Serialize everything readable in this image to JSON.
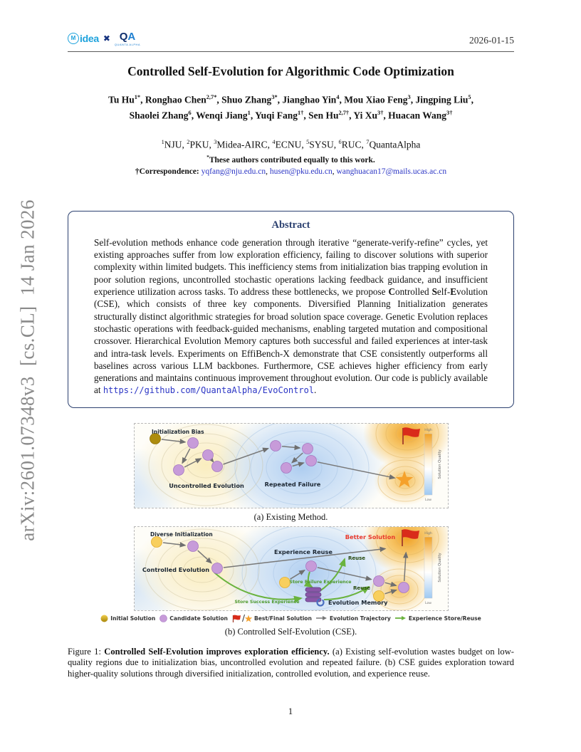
{
  "page": {
    "date": "2026-01-15",
    "page_number": "1",
    "arxiv_sidebar": "arXiv:2601.07348v3  [cs.CL]  14 Jan 2026"
  },
  "header": {
    "logo": {
      "midea_m": "M",
      "midea_rest": "idea",
      "cross_icon": "✖",
      "qa_q": "Q",
      "qa_a": "A",
      "qa_sub": "QUANTA ALPHA"
    }
  },
  "title": "Controlled Self-Evolution for Algorithmic Code Optimization",
  "authors": {
    "line1": [
      {
        "name": "Tu Hu",
        "sup": "1*"
      },
      {
        "name": "Ronghao Chen",
        "sup": "2,7*"
      },
      {
        "name": "Shuo Zhang",
        "sup": "3*"
      },
      {
        "name": "Jianghao Yin",
        "sup": "4"
      },
      {
        "name": "Mou Xiao Feng",
        "sup": "3"
      },
      {
        "name": "Jingping Liu",
        "sup": "5"
      }
    ],
    "line2": [
      {
        "name": "Shaolei Zhang",
        "sup": "6"
      },
      {
        "name": "Wenqi Jiang",
        "sup": "1"
      },
      {
        "name": "Yuqi Fang",
        "sup": "1†"
      },
      {
        "name": "Sen Hu",
        "sup": "2,7†"
      },
      {
        "name": "Yi Xu",
        "sup": "3†"
      },
      {
        "name": "Huacan Wang",
        "sup": "3†"
      }
    ]
  },
  "affiliations": [
    {
      "sup": "1",
      "name": "NJU"
    },
    {
      "sup": "2",
      "name": "PKU"
    },
    {
      "sup": "3",
      "name": "Midea-AIRC"
    },
    {
      "sup": "4",
      "name": "ECNU"
    },
    {
      "sup": "5",
      "name": "SYSU"
    },
    {
      "sup": "6",
      "name": "RUC"
    },
    {
      "sup": "7",
      "name": "QuantaAlpha"
    }
  ],
  "notes": {
    "equal_sup": "*",
    "equal_text": "These authors contributed equally to this work.",
    "corr_label": "†Correspondence:",
    "emails": [
      "yqfang@nju.edu.cn",
      "husen@pku.edu.cn",
      "wanghuacan17@mails.ucas.ac.cn"
    ]
  },
  "abstract": {
    "heading": "Abstract",
    "segments": [
      {
        "text": "Self-evolution methods enhance code generation through iterative “generate-verify-refine” cycles, yet existing approaches suffer from low exploration efficiency, failing to discover solutions with superior complexity within limited budgets. This inefficiency stems from initialization bias trapping evolution in poor solution regions, uncontrolled stochastic operations lacking feedback guidance, and insufficient experience utilization across tasks. To address these bottlenecks, we propose "
      },
      {
        "text": "C",
        "bold": true
      },
      {
        "text": "ontrolled "
      },
      {
        "text": "S",
        "bold": true
      },
      {
        "text": "elf-"
      },
      {
        "text": "E",
        "bold": true
      },
      {
        "text": "volution (CSE), which consists of three key components. Diversified Planning Initialization generates structurally distinct algorithmic strategies for broad solution space coverage. Genetic Evolution replaces stochastic operations with feedback-guided mechanisms, enabling targeted mutation and compositional crossover. Hierarchical Evolution Memory captures both successful and failed experiences at inter-task and intra-task levels. Experiments on EffiBench-X demonstrate that CSE consistently outperforms all baselines across various LLM backbones. Furthermore, CSE achieves higher efficiency from early generations and maintains continuous improvement throughout evolution. Our code is publicly available at "
      },
      {
        "text": "https://github.com/QuantaAlpha/EvoControl",
        "mono": true
      },
      {
        "text": "."
      }
    ]
  },
  "figure": {
    "panel_a": {
      "label_init_bias": "Initialization Bias",
      "label_uncontrolled": "Uncontrolled Evolution",
      "label_repeated": "Repeated Failure",
      "caption": "(a) Existing Method."
    },
    "panel_b": {
      "label_diverse_init": "Diverse Initialization",
      "label_controlled": "Controlled Evolution",
      "label_exp_reuse": "Experience Reuse",
      "label_better": "Better Solution",
      "label_reuse1": "Reuse",
      "label_reuse2": "Reuse",
      "label_store_fail": "Store Failure Experience",
      "label_store_success": "Store Success Experience",
      "label_memory": "Evolution Memory",
      "caption": "(b) Controlled Self-Evolution (CSE)."
    },
    "colorbar": {
      "high": "High",
      "low": "Low",
      "axis": "Solution Quality"
    },
    "legend": [
      {
        "label": "Initial Solution"
      },
      {
        "label": "Candidate Solution"
      },
      {
        "label": "Best/Final Solution"
      },
      {
        "label": "Evolution Trajectory"
      },
      {
        "label": "Experience Store/Reuse"
      }
    ],
    "caption_segments": [
      {
        "text": "Figure 1: "
      },
      {
        "text": "Controlled Self-Evolution improves exploration efficiency.",
        "bold": true
      },
      {
        "text": " (a) Existing self-evolution wastes budget on low-quality regions due to initialization bias, uncontrolled evolution and repeated failure. (b) CSE guides exploration toward higher-quality solutions through diversified initialization, controlled evolution, and experience reuse."
      }
    ]
  },
  "colors": {
    "link_blue": "#2b35c5",
    "navy": "#2c4170",
    "flag_red": "#d92b1a",
    "star_orange": "#f5a12b",
    "candidate_purple": "#c79bd9",
    "initial_olive": "#ad8c0e",
    "initial_yellow": "#f8cf5e",
    "trajectory_gray": "#787878",
    "experience_green": "#6ab33e"
  }
}
